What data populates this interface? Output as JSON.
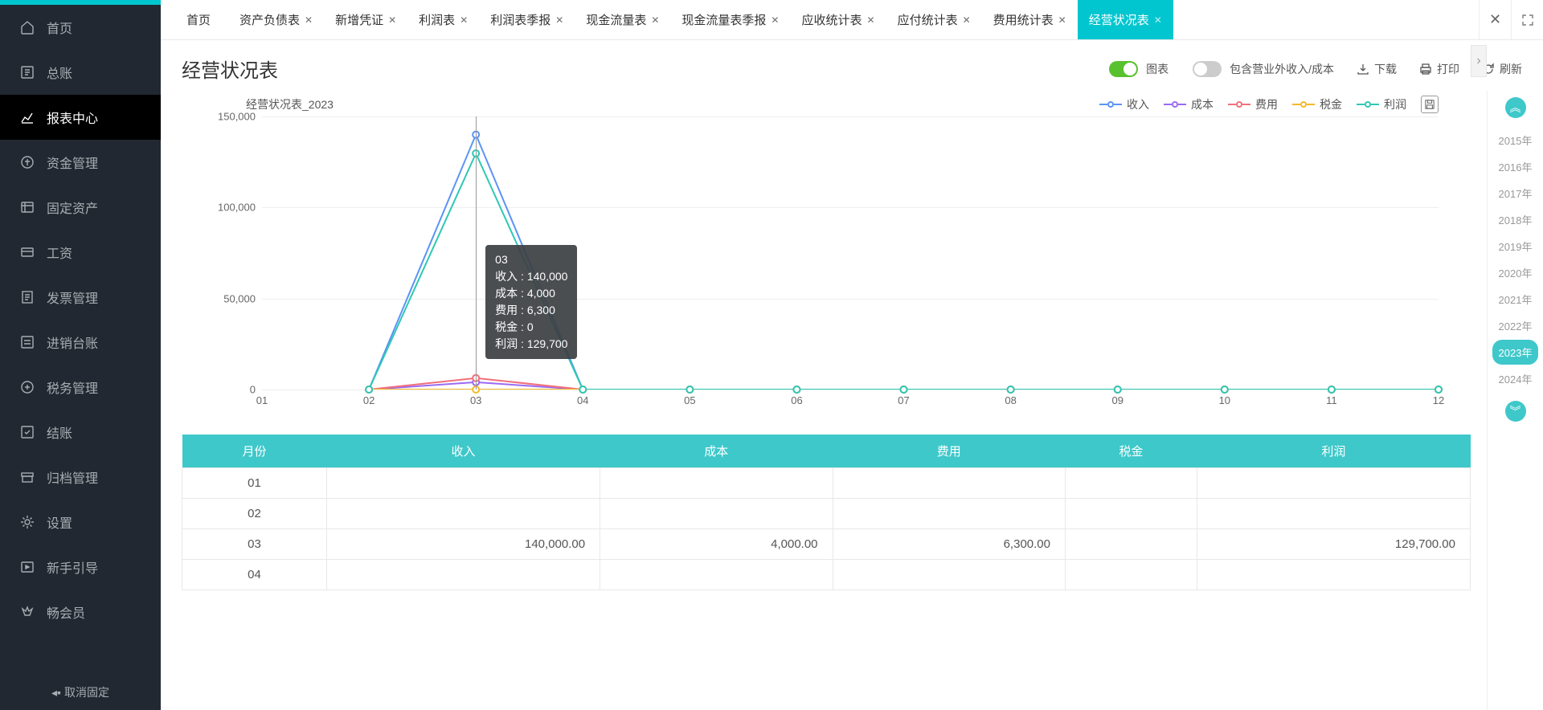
{
  "sidebar": {
    "items": [
      {
        "label": "首页",
        "icon": "home"
      },
      {
        "label": "总账",
        "icon": "ledger"
      },
      {
        "label": "报表中心",
        "icon": "report",
        "active": true
      },
      {
        "label": "资金管理",
        "icon": "fund"
      },
      {
        "label": "固定资产",
        "icon": "asset"
      },
      {
        "label": "工资",
        "icon": "salary"
      },
      {
        "label": "发票管理",
        "icon": "invoice"
      },
      {
        "label": "进销台账",
        "icon": "inout"
      },
      {
        "label": "税务管理",
        "icon": "tax"
      },
      {
        "label": "结账",
        "icon": "close"
      },
      {
        "label": "归档管理",
        "icon": "archive"
      },
      {
        "label": "设置",
        "icon": "gear"
      },
      {
        "label": "新手引导",
        "icon": "guide"
      },
      {
        "label": "畅会员",
        "icon": "vip"
      }
    ],
    "unpin": "取消固定"
  },
  "tabs": {
    "home": "首页",
    "items": [
      {
        "label": "资产负债表"
      },
      {
        "label": "新增凭证"
      },
      {
        "label": "利润表"
      },
      {
        "label": "利润表季报"
      },
      {
        "label": "现金流量表"
      },
      {
        "label": "现金流量表季报"
      },
      {
        "label": "应收统计表"
      },
      {
        "label": "应付统计表"
      },
      {
        "label": "费用统计表"
      },
      {
        "label": "经营状况表",
        "active": true
      }
    ]
  },
  "header": {
    "title": "经营状况表",
    "toggle_chart_label": "图表",
    "toggle_other_label": "包含营业外收入/成本",
    "download": "下载",
    "print": "打印",
    "refresh": "刷新"
  },
  "years": {
    "list": [
      "2015年",
      "2016年",
      "2017年",
      "2018年",
      "2019年",
      "2020年",
      "2021年",
      "2022年",
      "2023年",
      "2024年"
    ],
    "active": "2023年"
  },
  "chart": {
    "title": "经营状况表_2023",
    "type": "line",
    "x_labels": [
      "01",
      "02",
      "03",
      "04",
      "05",
      "06",
      "07",
      "08",
      "09",
      "10",
      "11",
      "12"
    ],
    "y_ticks": [
      0,
      50000,
      100000,
      150000
    ],
    "y_tick_labels": [
      "0",
      "50,000",
      "100,000",
      "150,000"
    ],
    "ymax": 150000,
    "series": [
      {
        "name": "收入",
        "color": "#5c93f6",
        "values": [
          null,
          0,
          140000,
          0,
          0,
          0,
          0,
          0,
          0,
          0,
          0,
          0
        ]
      },
      {
        "name": "成本",
        "color": "#9a6bf3",
        "values": [
          null,
          0,
          4000,
          0,
          0,
          0,
          0,
          0,
          0,
          0,
          0,
          0
        ]
      },
      {
        "name": "费用",
        "color": "#f16f7b",
        "values": [
          null,
          0,
          6300,
          0,
          0,
          0,
          0,
          0,
          0,
          0,
          0,
          0
        ]
      },
      {
        "name": "税金",
        "color": "#f5b92a",
        "values": [
          null,
          0,
          0,
          0,
          0,
          0,
          0,
          0,
          0,
          0,
          0,
          0
        ]
      },
      {
        "name": "利润",
        "color": "#2ec8b4",
        "values": [
          null,
          0,
          129700,
          0,
          0,
          0,
          0,
          0,
          0,
          0,
          0,
          0
        ]
      }
    ],
    "tooltip": {
      "x_index": 2,
      "title": "03",
      "lines": [
        "收入 : 140,000",
        "成本 : 4,000",
        "费用 : 6,300",
        "税金 : 0",
        "利润 : 129,700"
      ]
    },
    "grid_color": "#eeeeee",
    "background": "#ffffff",
    "marker_radius": 4,
    "line_width": 2
  },
  "table": {
    "columns": [
      "月份",
      "收入",
      "成本",
      "费用",
      "税金",
      "利润"
    ],
    "header_bg": "#3ec8ca",
    "rows": [
      {
        "month": "01",
        "cells": [
          "",
          "",
          "",
          "",
          ""
        ]
      },
      {
        "month": "02",
        "cells": [
          "",
          "",
          "",
          "",
          ""
        ]
      },
      {
        "month": "03",
        "cells": [
          "140,000.00",
          "4,000.00",
          "6,300.00",
          "",
          "129,700.00"
        ]
      },
      {
        "month": "04",
        "cells": [
          "",
          "",
          "",
          "",
          ""
        ]
      }
    ]
  }
}
